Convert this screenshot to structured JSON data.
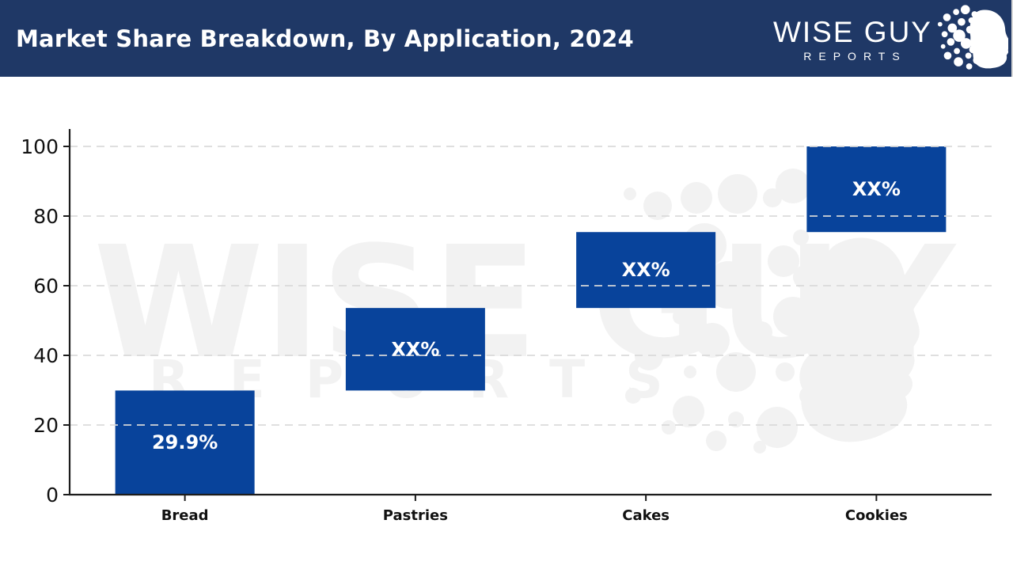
{
  "header": {
    "title": "Market Share Breakdown, By Application, 2024",
    "bg_color": "#1f3866",
    "logo": {
      "line1": "WISE GUY",
      "line2": "REPORTS"
    }
  },
  "watermark": {
    "line1": "WISE GUY",
    "line2": "R E P O R T S"
  },
  "chart_data": {
    "type": "bar",
    "subtype": "waterfall",
    "title": "Market Share Breakdown, By Application, 2024",
    "categories": [
      "Bread",
      "Pastries",
      "Cakes",
      "Cookies"
    ],
    "segments": [
      {
        "category": "Bread",
        "start": 0,
        "end": 29.9,
        "label": "29.9%"
      },
      {
        "category": "Pastries",
        "start": 29.9,
        "end": 53.6,
        "label": "XX%"
      },
      {
        "category": "Cakes",
        "start": 53.6,
        "end": 75.4,
        "label": "XX%"
      },
      {
        "category": "Cookies",
        "start": 75.4,
        "end": 100,
        "label": "XX%"
      }
    ],
    "xlabel": "",
    "ylabel": "",
    "ylim": [
      0,
      105
    ],
    "yticks": [
      0,
      20,
      40,
      60,
      80,
      100
    ],
    "grid": "horizontal-dashed",
    "legend": "none",
    "bar_color": "#08439b",
    "bar_label_color": "#ffffff",
    "axis_color": "#1c1c1c",
    "grid_color": "#d9d9d9",
    "watermark_color": "#f2f2f2"
  }
}
